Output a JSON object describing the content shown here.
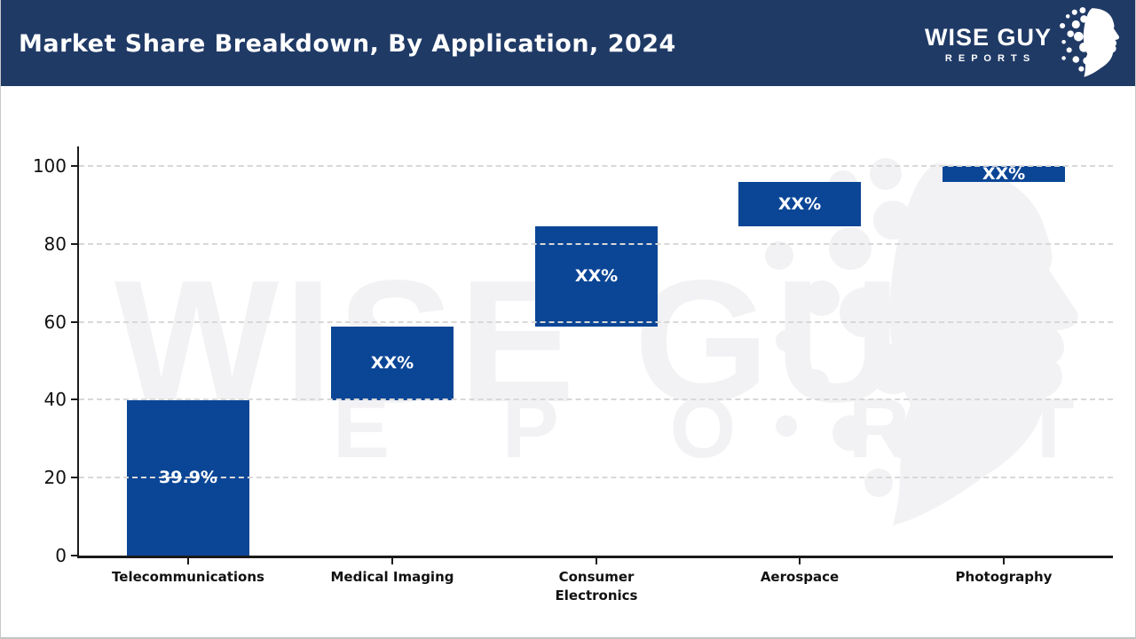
{
  "header": {
    "title": "Market Share Breakdown, By Application, 2024",
    "bg_color": "#203a66",
    "logo": {
      "line1": "WISE GUY",
      "line2": "R E P O R T S"
    }
  },
  "watermark": {
    "line1": "WISE GUY",
    "line2": "R E P O R T S"
  },
  "chart_data": {
    "type": "bar",
    "subtype": "waterfall",
    "title": "Market Share Breakdown, By Application, 2024",
    "categories": [
      "Telecommunications",
      "Medical Imaging",
      "Consumer\nElectronics",
      "Aerospace",
      "Photography"
    ],
    "segments": [
      {
        "category": "Telecommunications",
        "start": 0,
        "end": 39.9,
        "label": "39.9%"
      },
      {
        "category": "Medical Imaging",
        "start": 39.9,
        "end": 58.8,
        "label": "XX%"
      },
      {
        "category": "Consumer Electronics",
        "start": 58.8,
        "end": 84.5,
        "label": "XX%"
      },
      {
        "category": "Aerospace",
        "start": 84.5,
        "end": 96.0,
        "label": "XX%"
      },
      {
        "category": "Photography",
        "start": 96.0,
        "end": 100.0,
        "label": "XX%"
      }
    ],
    "yticks": [
      0,
      20,
      40,
      60,
      80,
      100
    ],
    "ylim": [
      0,
      105
    ],
    "xlabel": "",
    "ylabel": "",
    "grid": "horizontal-dashed",
    "legend": "none",
    "bar_color": "#0b4696",
    "bar_label_color": "#ffffff",
    "axis_color": "#1a1a1a",
    "grid_color": "#d8d8d8"
  }
}
